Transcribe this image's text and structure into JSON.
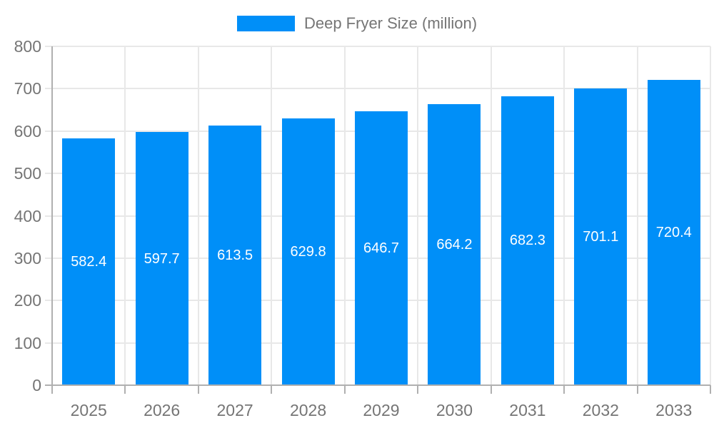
{
  "chart_data": {
    "type": "bar",
    "title": "Deep Fryer Size (million)",
    "categories": [
      "2025",
      "2026",
      "2027",
      "2028",
      "2029",
      "2030",
      "2031",
      "2032",
      "2033"
    ],
    "series": [
      {
        "name": "Deep Fryer Size (million)",
        "values": [
          582.4,
          597.7,
          613.5,
          629.8,
          646.7,
          664.2,
          682.3,
          701.1,
          720.4
        ]
      }
    ],
    "value_labels": [
      "582.4",
      "597.7",
      "613.5",
      "629.8",
      "646.7",
      "664.2",
      "682.3",
      "701.1",
      "720.4"
    ],
    "xlabel": "",
    "ylabel": "",
    "ylim": [
      0,
      800
    ],
    "y_tick_interval": 100,
    "y_tick_labels": [
      "0",
      "100",
      "200",
      "300",
      "400",
      "500",
      "600",
      "700",
      "800"
    ],
    "grid": true,
    "legend_position": "top",
    "colors": {
      "bar": "#008FF8",
      "axis_text": "#757575",
      "gridline": "#e8e8e8",
      "axis_line": "#b0b0b0",
      "value_label": "#ffffff",
      "background": "#ffffff"
    }
  }
}
